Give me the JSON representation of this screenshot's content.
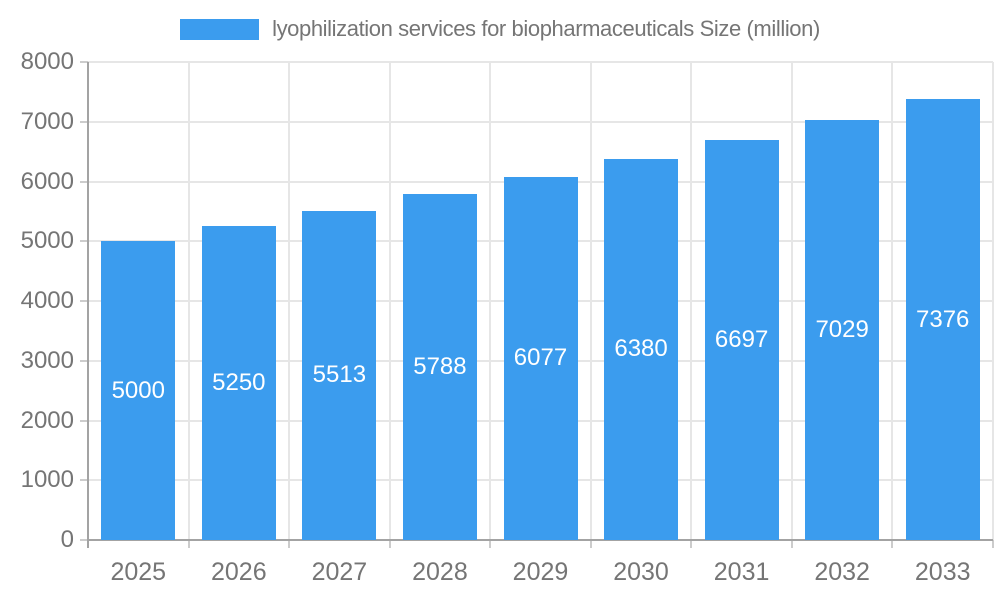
{
  "chart_data": {
    "type": "bar",
    "title": "",
    "legend": "lyophilization services for biopharmaceuticals Size (million)",
    "legend_position": "top",
    "categories": [
      "2025",
      "2026",
      "2027",
      "2028",
      "2029",
      "2030",
      "2031",
      "2032",
      "2033"
    ],
    "values": [
      5000,
      5250,
      5513,
      5788,
      6077,
      6380,
      6697,
      7029,
      7376
    ],
    "xlabel": "",
    "ylabel": "",
    "ylim": [
      0,
      8000
    ],
    "ytick_step": 1000,
    "grid": true,
    "colors": {
      "bar": "#3b9cee",
      "bar_label": "#ffffff",
      "axis_text": "#757575",
      "gridline": "#e6e6e6",
      "axis_line": "#a3a3a3"
    }
  }
}
